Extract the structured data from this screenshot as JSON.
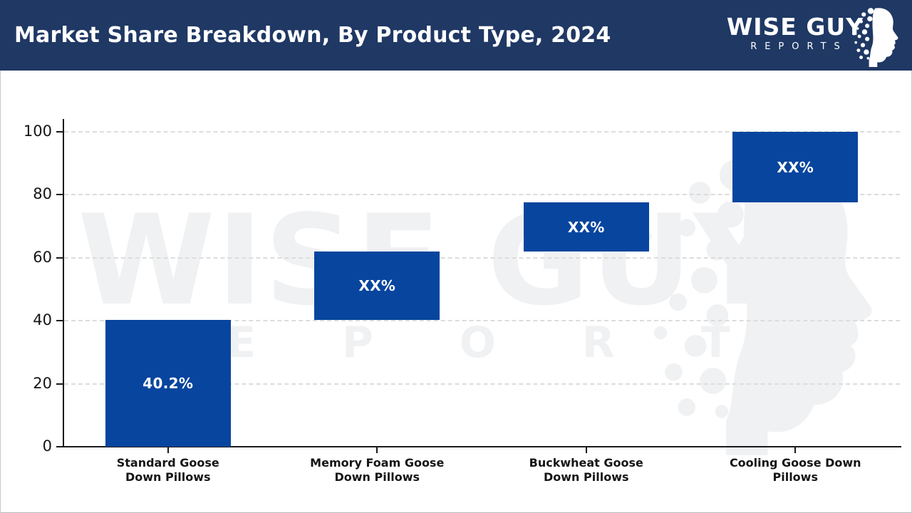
{
  "header": {
    "title": "Market Share Breakdown, By Product Type, 2024",
    "logo": {
      "line1": "WISE GUY",
      "line2": "REPORTS"
    }
  },
  "watermark": {
    "line1": "WISE GUY",
    "line2": "R E P O R T S"
  },
  "chart_data": {
    "type": "bar",
    "subtype": "floating-waterfall",
    "title": "Market Share Breakdown, By Product Type, 2024",
    "categories": [
      "Standard Goose\nDown Pillows",
      "Memory Foam Goose\nDown Pillows",
      "Buckwheat Goose\nDown Pillows",
      "Cooling Goose Down\nPillows"
    ],
    "bars": [
      {
        "start": 0,
        "end": 40.2,
        "value": 40.2,
        "label": "40.2%"
      },
      {
        "start": 40.2,
        "end": 62,
        "value": 21.8,
        "label": "XX%"
      },
      {
        "start": 62,
        "end": 77.5,
        "value": 15.5,
        "label": "XX%"
      },
      {
        "start": 77.5,
        "end": 100,
        "value": 22.5,
        "label": "XX%"
      }
    ],
    "xlabel": "",
    "ylabel": "",
    "yticks": [
      0,
      20,
      40,
      60,
      80,
      100
    ],
    "ylim": [
      0,
      105
    ],
    "grid": "horizontal-dashed",
    "legend": "none",
    "bar_color": "#07459e"
  },
  "colors": {
    "header_bg": "#1f3864",
    "bar_fill": "#07459e",
    "bar_label_text": "#ffffff",
    "axis": "#1a1a1a",
    "gridline": "#dcdcdc",
    "watermark": "#f0f1f3",
    "page_bg": "#ffffff"
  }
}
